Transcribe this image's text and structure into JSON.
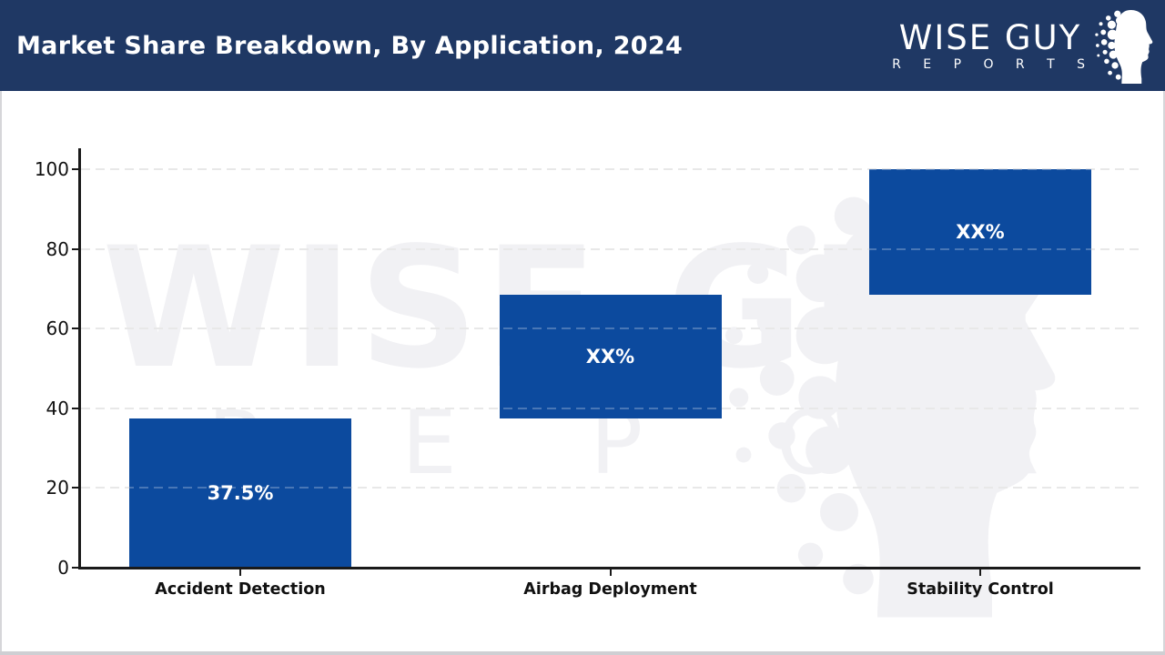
{
  "header": {
    "title": "Market Share Breakdown, By Application, 2024",
    "bg_color": "#1f3864",
    "logo": {
      "line1": "WISE GUY",
      "line2": "R E P O R T S"
    }
  },
  "watermark": {
    "line1": "WISE GUY",
    "line2": "R E P O R T S"
  },
  "chart_data": {
    "type": "bar",
    "subtype": "floating-waterfall",
    "title": "Market Share Breakdown, By Application, 2024",
    "categories": [
      "Accident Detection",
      "Airbag Deployment",
      "Stability Control"
    ],
    "series": [
      {
        "name": "Market Share",
        "segments": [
          {
            "category": "Accident Detection",
            "start": 0,
            "end": 37.5,
            "label": "37.5%"
          },
          {
            "category": "Airbag Deployment",
            "start": 37.5,
            "end": 68.5,
            "label": "XX%"
          },
          {
            "category": "Stability Control",
            "start": 68.5,
            "end": 100,
            "label": "XX%"
          }
        ]
      }
    ],
    "ylim": [
      0,
      100
    ],
    "yticks": [
      0,
      20,
      40,
      60,
      80,
      100
    ],
    "grid": "horizontal-dashed",
    "legend": "none",
    "bar_color": "#0c4a9e",
    "bar_label_color": "#ffffff",
    "axis_color": "#1a1a1a",
    "gridline_color": "#e0e0e0"
  }
}
